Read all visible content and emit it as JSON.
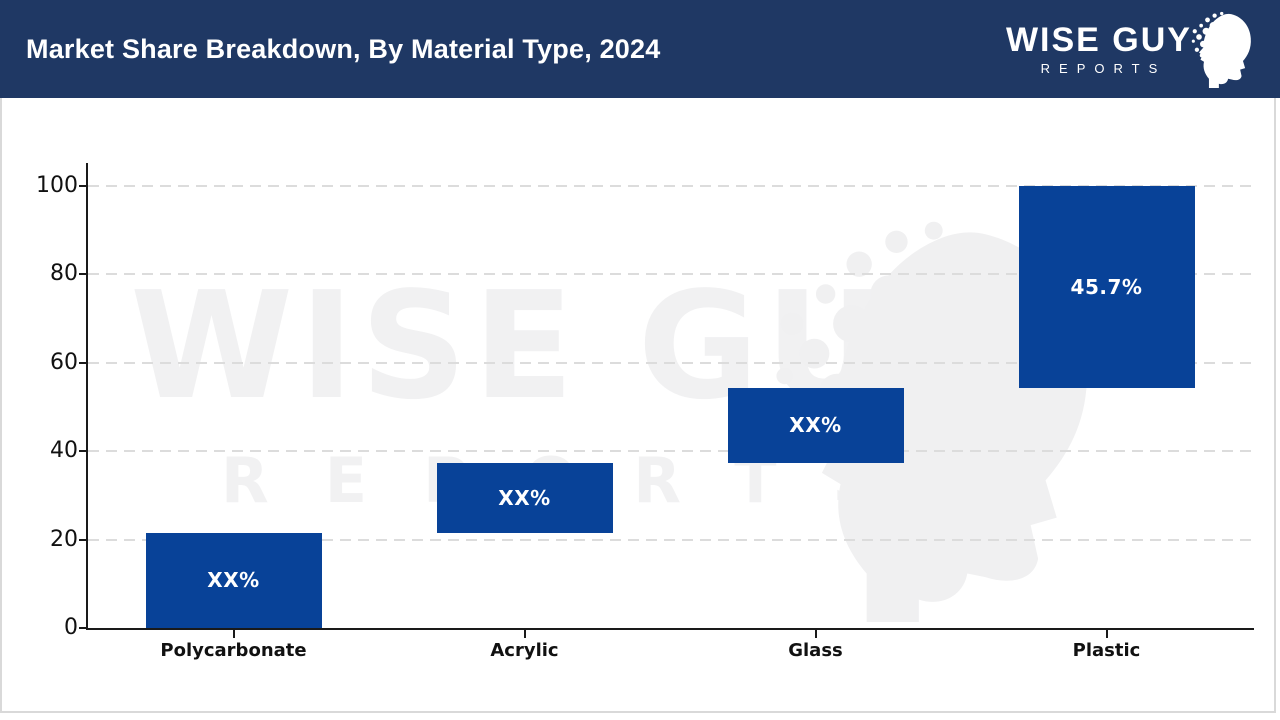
{
  "header": {
    "title": "Market Share Breakdown, By Material Type, 2024",
    "logo": {
      "line1": "WISE GUY",
      "line2": "REPORTS"
    }
  },
  "watermark": {
    "line1": "WISE GUY",
    "line2": "REPORTS"
  },
  "colors": {
    "header_bg": "#1f3864",
    "bar_fill": "#084298",
    "bar_label_text": "#ffffff",
    "gridline": "#dcdcdc",
    "axis": "#1a1a1a",
    "watermark": "#f1f1f2"
  },
  "chart_data": {
    "type": "bar",
    "subtype": "floating-segment-bars",
    "title": "Market Share Breakdown, By Material Type, 2024",
    "categories": [
      "Polycarbonate",
      "Acrylic",
      "Glass",
      "Plastic"
    ],
    "bars": [
      {
        "category": "Polycarbonate",
        "start": 0,
        "end": 21.5,
        "label": "XX%"
      },
      {
        "category": "Acrylic",
        "start": 21.5,
        "end": 37.4,
        "label": "XX%"
      },
      {
        "category": "Glass",
        "start": 37.4,
        "end": 54.3,
        "label": "XX%"
      },
      {
        "category": "Plastic",
        "start": 54.3,
        "end": 100,
        "label": "45.7%"
      }
    ],
    "yticks": [
      0,
      20,
      40,
      60,
      80,
      100
    ],
    "ylim": [
      0,
      100
    ],
    "xlabel": "",
    "ylabel": "",
    "grid": "horizontal-dashed",
    "legend": "none"
  }
}
